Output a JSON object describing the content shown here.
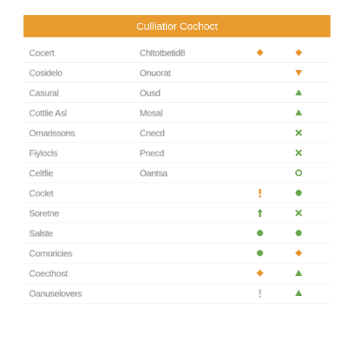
{
  "header": {
    "title": "Culliatior Cochoct"
  },
  "colors": {
    "header_bg": "#e89a2e",
    "header_text": "#ffffff",
    "text": "#7a7a7a",
    "orange": "#e8942a",
    "green": "#6aa84f",
    "gray": "#c0c0c0",
    "divider": "#f0f0f0"
  },
  "icons": {
    "diamond-orange": {
      "type": "diamond",
      "fill": "#e8942a"
    },
    "triangle-down-orange": {
      "type": "triangle-down",
      "fill": "#e8942a"
    },
    "triangle-up-green": {
      "type": "triangle-up",
      "fill": "#6aa84f"
    },
    "cross-green": {
      "type": "cross",
      "stroke": "#6aa84f"
    },
    "circle-green": {
      "type": "circle",
      "fill": "#6aa84f"
    },
    "circle-green-outline": {
      "type": "circle-outline",
      "stroke": "#6aa84f"
    },
    "exclaim-orange": {
      "type": "exclaim",
      "fill": "#e8942a"
    },
    "exclaim-gray": {
      "type": "exclaim",
      "fill": "#c0c0c0"
    },
    "arrow-up-green": {
      "type": "arrow-up",
      "fill": "#6aa84f"
    }
  },
  "rows": [
    {
      "c1": "Cocert",
      "c2": "Chltotbetid8",
      "i1": "diamond-orange",
      "i2": "diamond-orange"
    },
    {
      "c1": "Cosidelo",
      "c2": "Onuorat",
      "i1": "",
      "i2": "triangle-down-orange"
    },
    {
      "c1": "Casural",
      "c2": "Ousd",
      "i1": "",
      "i2": "triangle-up-green"
    },
    {
      "c1": "Cottlie Asl",
      "c2": "Mosal",
      "i1": "",
      "i2": "triangle-up-green"
    },
    {
      "c1": "Omarissons",
      "c2": "Cnecd",
      "i1": "",
      "i2": "cross-green"
    },
    {
      "c1": "Fiylocls",
      "c2": "Pnecd",
      "i1": "",
      "i2": "cross-green"
    },
    {
      "c1": "Celtfie",
      "c2": "Oantsa",
      "i1": "",
      "i2": "circle-green-outline"
    },
    {
      "c1": "Coclet",
      "c2": "",
      "i1": "exclaim-orange",
      "i2": "circle-green"
    },
    {
      "c1": "Soretne",
      "c2": "",
      "i1": "arrow-up-green",
      "i2": "cross-green"
    },
    {
      "c1": "Salste",
      "c2": "",
      "i1": "circle-green",
      "i2": "circle-green"
    },
    {
      "c1": "Cornoricies",
      "c2": "",
      "i1": "circle-green",
      "i2": "diamond-orange"
    },
    {
      "c1": "Coecthost",
      "c2": "",
      "i1": "diamond-orange",
      "i2": "triangle-up-green"
    },
    {
      "c1": "Oanuselovers",
      "c2": "",
      "i1": "exclaim-gray",
      "i2": "triangle-up-green"
    }
  ]
}
